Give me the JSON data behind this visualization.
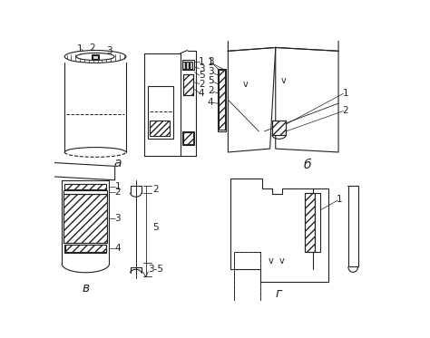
{
  "bg_color": "#ffffff",
  "label_a": "a",
  "label_b": "б",
  "label_v": "в",
  "label_g": "г",
  "line_color": "#222222",
  "font_size_label": 10,
  "font_size_num": 7.5
}
